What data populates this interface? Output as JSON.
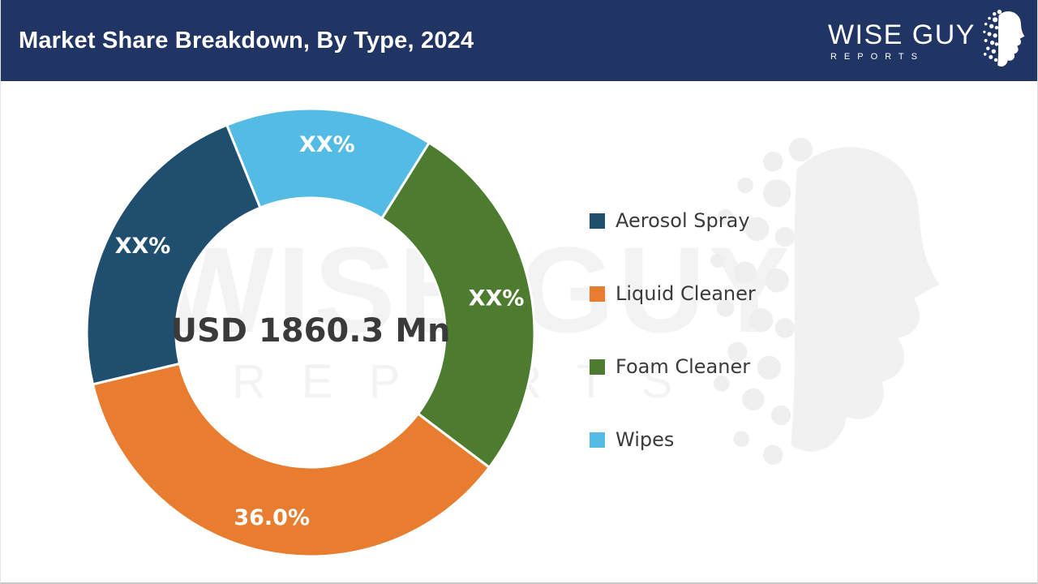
{
  "header": {
    "title": "Market Share Breakdown, By Type, 2024",
    "bg_color": "#213564",
    "logo": {
      "line1": "WISE GUY",
      "line2": "REPORTS"
    }
  },
  "chart_data": {
    "type": "donut",
    "title": "Market Share Breakdown, By Type, 2024",
    "center_label": "USD 1860.3 Mn",
    "segments": [
      {
        "name": "Aerosol Spray",
        "color": "#204E6E",
        "value_pct": 22.6,
        "label": "XX%"
      },
      {
        "name": "Liquid Cleaner",
        "color": "#E87D30",
        "value_pct": 36.0,
        "label": "36.0%"
      },
      {
        "name": "Foam Cleaner",
        "color": "#4D7B2F",
        "value_pct": 26.4,
        "label": "XX%"
      },
      {
        "name": "Wipes",
        "color": "#54BCE4",
        "value_pct": 15.0,
        "label": "XX%"
      }
    ],
    "draw_order": [
      3,
      2,
      1,
      0
    ],
    "start_angle_deg": 112,
    "direction": "clockwise",
    "outer_radius": 276,
    "inner_radius": 166,
    "label_radius": 233,
    "legend_position": "right",
    "separator_color": "#ffffff",
    "center_text_color": "#3a3a3a"
  },
  "watermark": {
    "line1": "WISE GUY",
    "line2": "REPORTS"
  }
}
